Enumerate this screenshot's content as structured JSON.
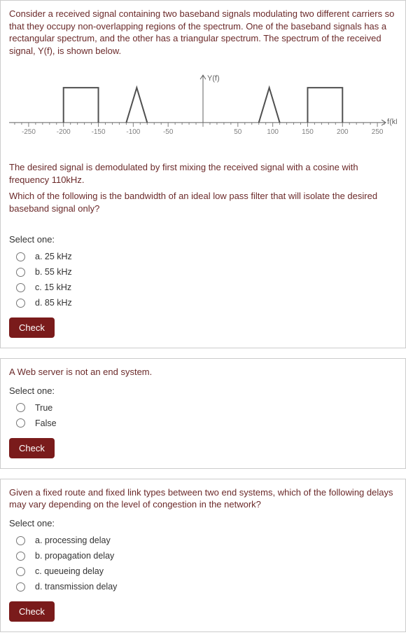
{
  "q1": {
    "intro": "Consider a received signal containing two baseband signals modulating two different carriers so that they occupy non-overlapping regions of the spectrum. One of the baseband signals has a rectangular spectrum, and the other has a triangular spectrum. The spectrum of the received signal, Y(f), is shown below.",
    "post1": "The desired signal is demodulated by first mixing the received signal with a cosine with frequency 110kHz.",
    "post2": "Which of the following is the bandwidth of an ideal low pass filter that will isolate the desired baseband signal only?",
    "selectOne": "Select one:",
    "options": [
      "a. 25 kHz",
      "b. 55 kHz",
      "c. 15 kHz",
      "d. 85 kHz"
    ],
    "check": "Check",
    "chart": {
      "y_label": "Y(f)",
      "x_label": "f(kHz)",
      "ticks": [
        "-250",
        "-200",
        "-150",
        "-100",
        "-50",
        "",
        "50",
        "100",
        "150",
        "200",
        "250"
      ],
      "line_color": "#505050",
      "tick_color": "#808080",
      "label_color": "#606060"
    }
  },
  "q2": {
    "intro": "A Web server is not an end system.",
    "selectOne": "Select one:",
    "options": [
      "True",
      "False"
    ],
    "check": "Check"
  },
  "q3": {
    "intro": "Given a fixed route and fixed link types between two end systems, which of the following delays may vary depending on the level of congestion in the network?",
    "selectOne": "Select one:",
    "options": [
      "a. processing delay",
      "b. propagation delay",
      "c. queueing delay",
      "d. transmission delay"
    ],
    "check": "Check"
  }
}
